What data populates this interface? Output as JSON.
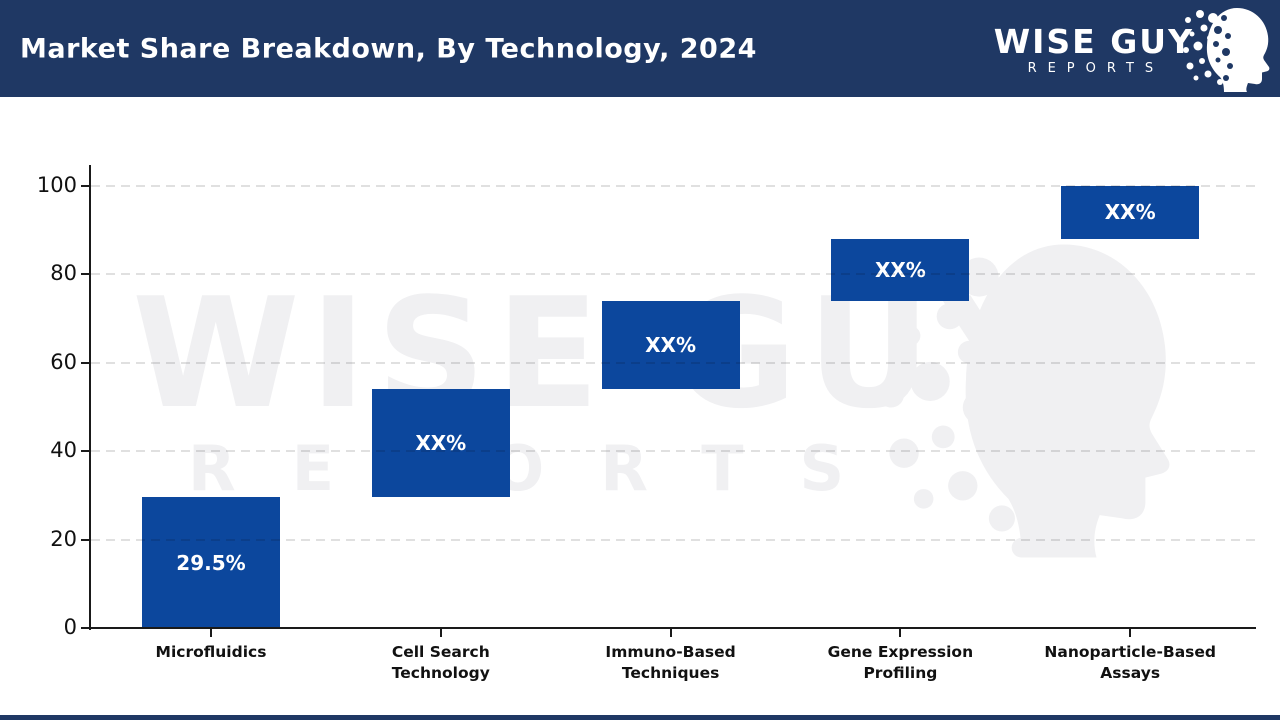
{
  "header": {
    "title": "Market Share Breakdown, By Technology, 2024",
    "bg_color": "#1f3864",
    "logo": {
      "brand": "WISE GUY",
      "sub": "REPORTS"
    }
  },
  "watermark": {
    "brand": "WISE GUY",
    "sub": "REPORTS"
  },
  "chart_data": {
    "type": "bar",
    "subtype": "waterfall-floating-bars",
    "title": "Market Share Breakdown, By Technology, 2024",
    "categories": [
      "Microfluidics",
      "Cell Search Technology",
      "Immuno-Based Techniques",
      "Gene Expression Profiling",
      "Nanoparticle-Based Assays"
    ],
    "segments": [
      {
        "category": "Microfluidics",
        "start": 0,
        "end": 29.5,
        "label": "29.5%"
      },
      {
        "category": "Cell Search Technology",
        "start": 29.5,
        "end": 54,
        "label": "XX%"
      },
      {
        "category": "Immuno-Based Techniques",
        "start": 54,
        "end": 74,
        "label": "XX%"
      },
      {
        "category": "Gene Expression Profiling",
        "start": 74,
        "end": 88,
        "label": "XX%"
      },
      {
        "category": "Nanoparticle-Based Assays",
        "start": 88,
        "end": 100,
        "label": "XX%"
      }
    ],
    "yticks": [
      0,
      20,
      40,
      60,
      80,
      100
    ],
    "ylim": [
      0,
      105
    ],
    "xlabel": "",
    "ylabel": "",
    "bar_color": "#0c479d",
    "grid": "dashed horizontal",
    "grid_color": "rgba(0,0,0,0.12)",
    "legend": "none"
  }
}
